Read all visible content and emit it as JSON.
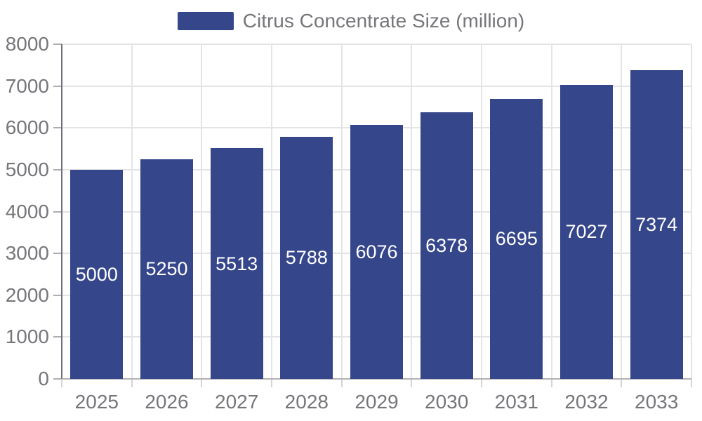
{
  "legend": {
    "label": "Citrus Concentrate Size (million)"
  },
  "chart_data": {
    "type": "bar",
    "title": "",
    "categories": [
      "2025",
      "2026",
      "2027",
      "2028",
      "2029",
      "2030",
      "2031",
      "2032",
      "2033"
    ],
    "series": [
      {
        "name": "Citrus Concentrate Size (million)",
        "values": [
          5000,
          5250,
          5513,
          5788,
          6076,
          6378,
          6695,
          7027,
          7374
        ]
      }
    ],
    "xlabel": "",
    "ylabel": "",
    "ylim": [
      0,
      8000
    ],
    "y_ticks": [
      0,
      1000,
      2000,
      3000,
      4000,
      5000,
      6000,
      7000,
      8000
    ],
    "grid": true,
    "legend_position": "top-center",
    "value_label_position": "inside-center"
  },
  "colors": {
    "bar": "#36468b",
    "gridline": "#e4e4e6",
    "y_axis_line": "#6e7079",
    "x_axis_line": "#b2b2b5",
    "y_tick": "#aeaeb1",
    "x_tick": "#d4d4d7",
    "tick_text": "#75767a",
    "legend_text": "#75767a",
    "value_label_text": "#ffffff",
    "background": "#ffffff"
  }
}
